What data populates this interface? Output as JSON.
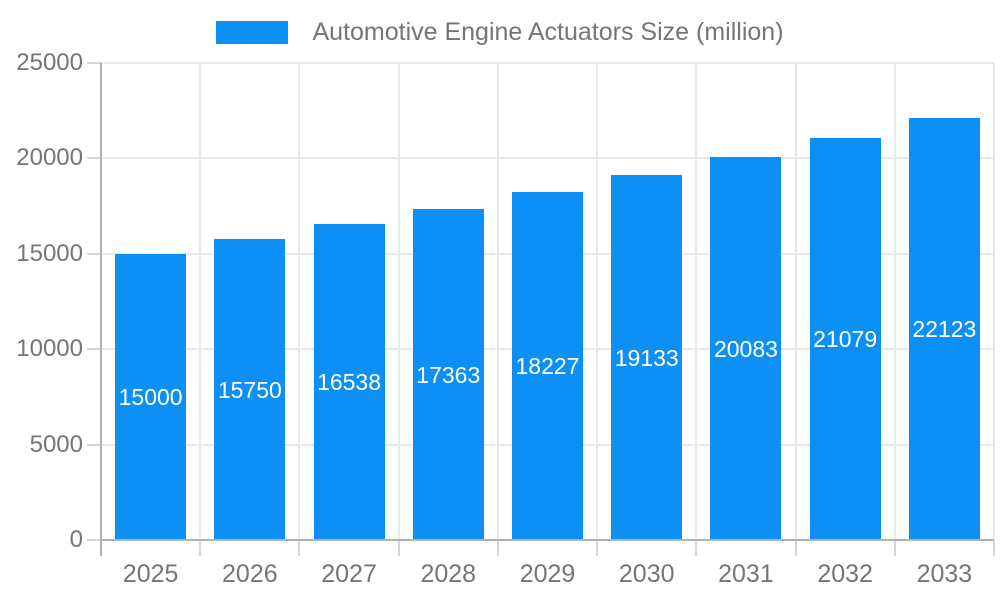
{
  "chart_data": {
    "type": "bar",
    "title": "Automotive Engine Actuators Size (million)",
    "legend": {
      "label": "Automotive Engine Actuators Size (million)",
      "position": "top-center"
    },
    "categories": [
      "2025",
      "2026",
      "2027",
      "2028",
      "2029",
      "2030",
      "2031",
      "2032",
      "2033"
    ],
    "series": [
      {
        "name": "Automotive Engine Actuators Size (million)",
        "values": [
          15000,
          15750,
          16538,
          17363,
          18227,
          19133,
          20083,
          21079,
          22123
        ]
      }
    ],
    "value_labels_shown": true,
    "xlabel": "",
    "ylabel": "",
    "ylim": [
      0,
      25000
    ],
    "yticks": [
      0,
      5000,
      10000,
      15000,
      20000,
      25000
    ],
    "grid": true,
    "colors": {
      "bar": "#0d90f6",
      "bar_value_text": "#ffffff",
      "axis_line": "#b1b1b1",
      "gridline": "#e8e8e8",
      "tick": "#d6d6d6",
      "label_text": "#757575",
      "background": "#ffffff"
    }
  }
}
